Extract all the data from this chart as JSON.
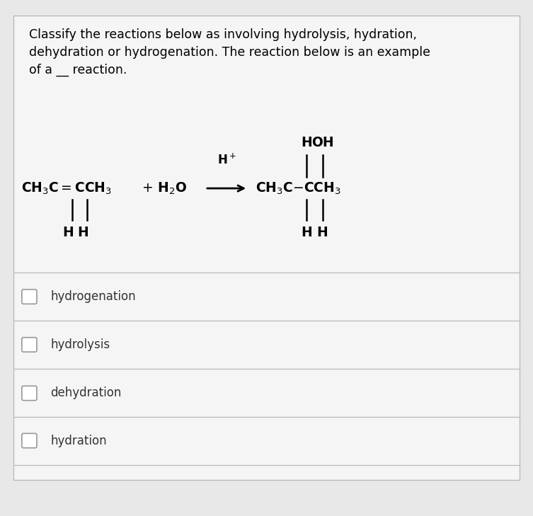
{
  "bg_color": "#e8e8e8",
  "card_color": "#f5f5f5",
  "title_text": "Classify the reactions below as involving hydrolysis, hydration,\ndehydration or hydrogenation. The reaction below is an example\nof a __ reaction.",
  "options": [
    "hydrogenation",
    "hydrolysis",
    "dehydration",
    "hydration"
  ],
  "title_fontsize": 12.5,
  "option_fontsize": 12,
  "reaction_fontsize": 13.5,
  "figsize": [
    7.53,
    7.29
  ],
  "dpi": 100
}
